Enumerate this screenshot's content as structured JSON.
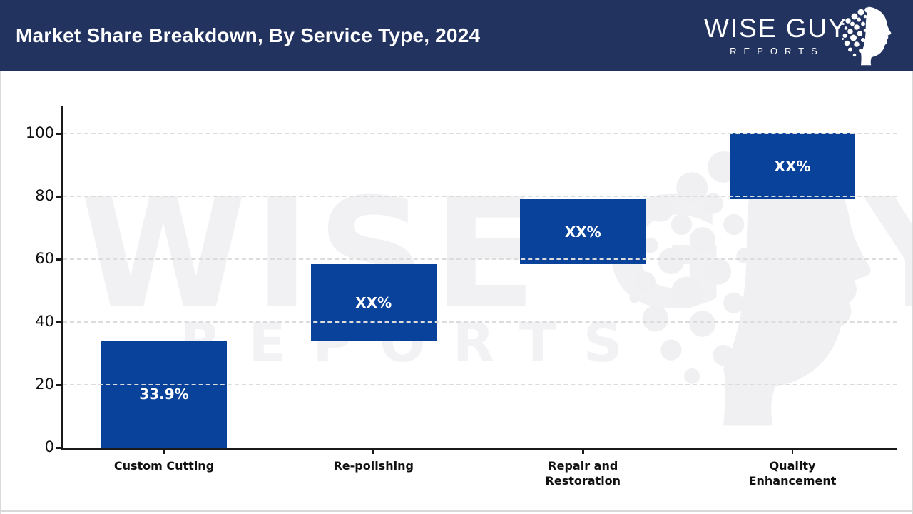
{
  "header": {
    "title": "Market Share Breakdown, By Service Type, 2024",
    "bg_color": "#22335f",
    "logo": {
      "name": "WISE GUY",
      "sub": "REPORTS",
      "head_icon": "dotted-head-profile-icon"
    }
  },
  "watermark": {
    "line1": "WISE GUY",
    "line2": "REPORTS",
    "head_icon": "dotted-head-profile-icon"
  },
  "chart_data": {
    "type": "bar",
    "subtype": "waterfall",
    "title": "Market Share Breakdown, By Service Type, 2024",
    "categories": [
      {
        "label_lines": [
          "Custom Cutting"
        ]
      },
      {
        "label_lines": [
          "Re-polishing"
        ]
      },
      {
        "label_lines": [
          "Repair and",
          "Restoration"
        ]
      },
      {
        "label_lines": [
          "Quality",
          "Enhancement"
        ]
      }
    ],
    "segments": [
      {
        "start": 0,
        "end": 33.9,
        "label": "33.9%"
      },
      {
        "start": 33.9,
        "end": 58.3,
        "label": "XX%"
      },
      {
        "start": 58.3,
        "end": 79.0,
        "label": "XX%"
      },
      {
        "start": 79.0,
        "end": 100,
        "label": "XX%"
      }
    ],
    "xlabel": "",
    "ylabel": "",
    "ylim": [
      0,
      105
    ],
    "yticks": [
      0,
      20,
      40,
      60,
      80,
      100
    ],
    "grid": "horizontal-dashed",
    "legend": "none",
    "bar_color": "#09429b",
    "bar_label_color": "#ffffff",
    "axis_color": "#1a1a1a",
    "grid_color": "#dcdcdc"
  }
}
